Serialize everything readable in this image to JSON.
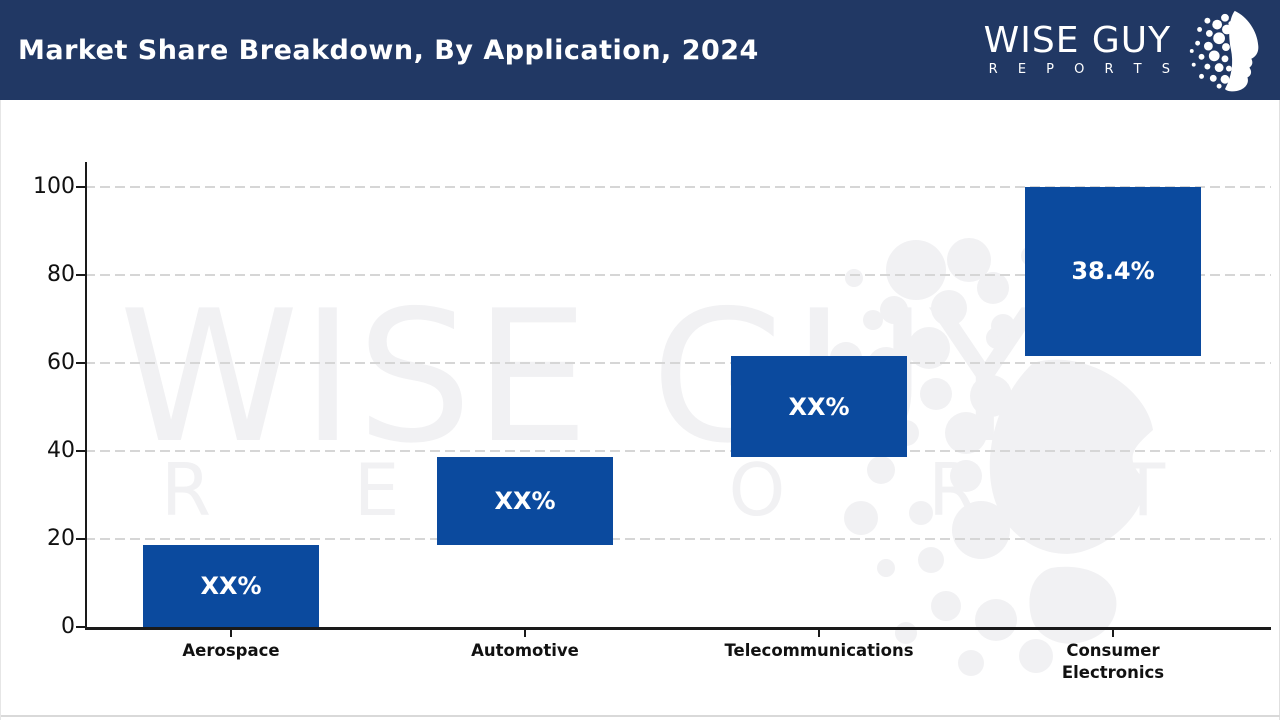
{
  "header": {
    "title": "Market Share Breakdown, By Application, 2024",
    "bg_color": "#213864",
    "logo": {
      "line1": "WISE GUY",
      "line2": "R E P O R T S"
    }
  },
  "watermark": {
    "line1": "WISE GUY",
    "line2": "R E P O R T S"
  },
  "chart_data": {
    "type": "bar",
    "subtype": "waterfall",
    "title": "Market Share Breakdown, By Application, 2024",
    "categories": [
      "Aerospace",
      "Automotive",
      "Telecommunications",
      "Consumer\nElectronics"
    ],
    "bars": [
      {
        "category": "Aerospace",
        "start": 0,
        "end": 18.6,
        "label": "XX%"
      },
      {
        "category": "Automotive",
        "start": 18.6,
        "end": 38.6,
        "label": "XX%"
      },
      {
        "category": "Telecommunications",
        "start": 38.6,
        "end": 61.6,
        "label": "XX%"
      },
      {
        "category": "Consumer Electronics",
        "start": 61.6,
        "end": 100,
        "label": "38.4%"
      }
    ],
    "ylim": [
      0,
      100
    ],
    "yticks": [
      0,
      20,
      40,
      60,
      80,
      100
    ],
    "grid": true,
    "legend": false,
    "bar_color": "#0b4a9e",
    "axis_color": "#1a1a1a",
    "grid_color": "#d6d6d6",
    "label_color": "#ffffff",
    "watermark_color": "#f1f1f3"
  }
}
